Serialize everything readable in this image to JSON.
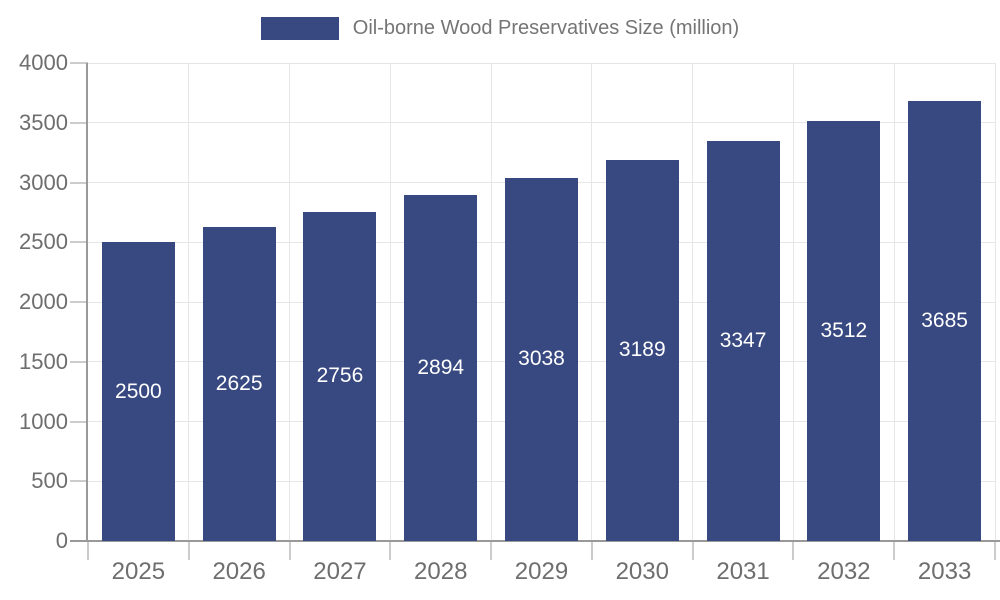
{
  "legend": {
    "label": "Oil-borne Wood Preservatives Size (million)"
  },
  "chart_data": {
    "type": "bar",
    "title": "Oil-borne Wood Preservatives Size (million)",
    "categories": [
      "2025",
      "2026",
      "2027",
      "2028",
      "2029",
      "2030",
      "2031",
      "2032",
      "2033"
    ],
    "values": [
      2500,
      2625,
      2756,
      2894,
      3038,
      3189,
      3347,
      3512,
      3685
    ],
    "series": [
      {
        "name": "Oil-borne Wood Preservatives Size (million)",
        "values": [
          2500,
          2625,
          2756,
          2894,
          3038,
          3189,
          3347,
          3512,
          3685
        ]
      }
    ],
    "xlabel": "",
    "ylabel": "",
    "ylim": [
      0,
      4000
    ],
    "y_tick_step": 500,
    "y_tick_labels": [
      "0",
      "500",
      "1000",
      "1500",
      "2000",
      "2500",
      "3000",
      "3500",
      "4000"
    ],
    "grid": true,
    "legend_position": "top-center",
    "bar_labels_shown": true,
    "colors": {
      "bar": "#384981",
      "bar_label": "#ffffff",
      "axis_line": "#999999",
      "tick": "#cccccc",
      "gridline": "#e6e6e6",
      "axis_text": "#6e6e6e",
      "legend_text": "#757575",
      "background": "#ffffff"
    }
  }
}
